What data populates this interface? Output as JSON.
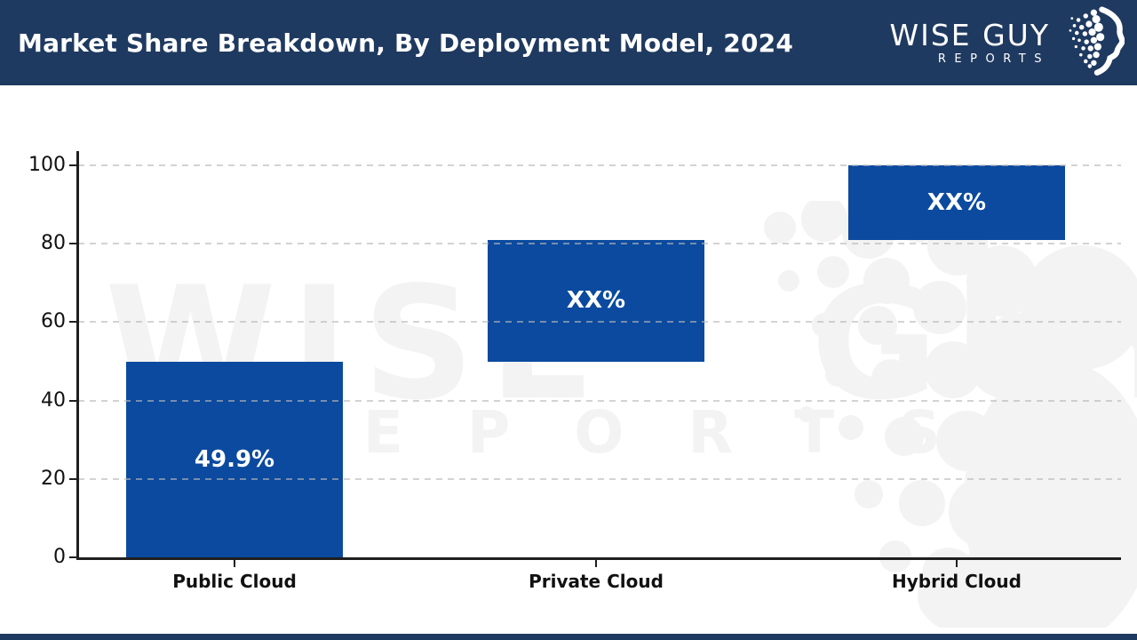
{
  "header": {
    "title": "Market Share Breakdown, By Deployment Model, 2024",
    "logo": {
      "line1": "WISE GUY",
      "line2": "REPORTS"
    },
    "bg_color": "#1f3a60"
  },
  "watermark": {
    "line1": "WISE GUY",
    "line2": "REPORTS"
  },
  "chart_data": {
    "type": "bar",
    "subtype": "floating-waterfall",
    "title": "Market Share Breakdown, By Deployment Model, 2024",
    "categories": [
      "Public Cloud",
      "Private Cloud",
      "Hybrid Cloud"
    ],
    "segments": [
      {
        "category": "Public Cloud",
        "start": 0,
        "end": 49.9,
        "label": "49.9%"
      },
      {
        "category": "Private Cloud",
        "start": 49.9,
        "end": 81,
        "label": "XX%"
      },
      {
        "category": "Hybrid Cloud",
        "start": 81,
        "end": 100,
        "label": "XX%"
      }
    ],
    "values_displayed": [
      "49.9%",
      "XX%",
      "XX%"
    ],
    "yticks": [
      0,
      20,
      40,
      60,
      80,
      100
    ],
    "ylim": [
      0,
      100
    ],
    "xlabel": "",
    "ylabel": "",
    "grid": "dashed-horizontal-over-bars",
    "legend": "none",
    "bar_color": "#0b4a9f",
    "value_label_color": "#ffffff"
  }
}
